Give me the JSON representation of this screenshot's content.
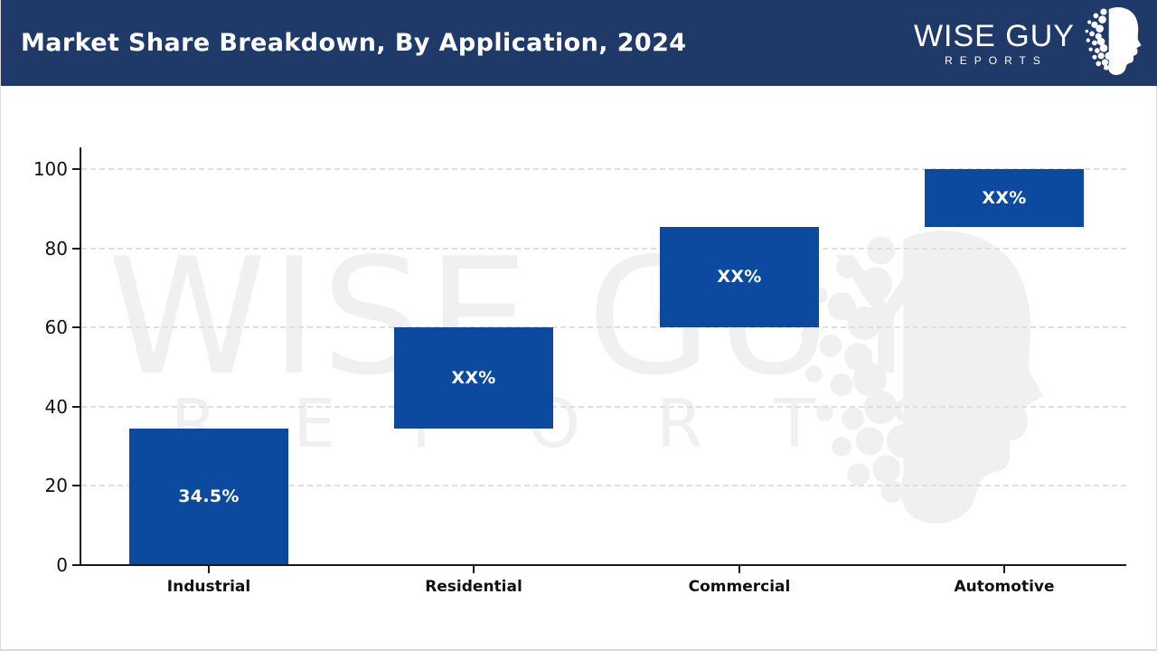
{
  "header": {
    "title": "Market Share Breakdown, By Application, 2024",
    "logo": {
      "line1": "WISE GUY",
      "line2": "REPORTS"
    }
  },
  "watermark": {
    "line1": "WISE GUY",
    "line2": "REPORTS"
  },
  "colors": {
    "header_bg": "#1f3a68",
    "bar": "#0b4a9e",
    "bar_label": "#ffffff",
    "grid": "#dfdfdf",
    "axis": "#1a1a1a",
    "watermark": "#f0f0f0"
  },
  "chart_data": {
    "type": "bar",
    "subtype": "waterfall",
    "title": "Market Share Breakdown, By Application, 2024",
    "categories": [
      "Industrial",
      "Residential",
      "Commercial",
      "Automotive"
    ],
    "bars": [
      {
        "category": "Industrial",
        "start": 0,
        "end": 34.5,
        "label": "34.5%"
      },
      {
        "category": "Residential",
        "start": 34.5,
        "end": 60,
        "label": "XX%"
      },
      {
        "category": "Commercial",
        "start": 60,
        "end": 85.5,
        "label": "XX%"
      },
      {
        "category": "Automotive",
        "start": 85.5,
        "end": 100,
        "label": "XX%"
      }
    ],
    "xlabel": "",
    "ylabel": "",
    "yticks": [
      0,
      20,
      40,
      60,
      80,
      100
    ],
    "ylim": [
      0,
      105.5
    ],
    "grid": "horizontal-dashed",
    "legend": "none",
    "bar_color": "#0b4a9e",
    "bar_label_color": "#ffffff"
  }
}
